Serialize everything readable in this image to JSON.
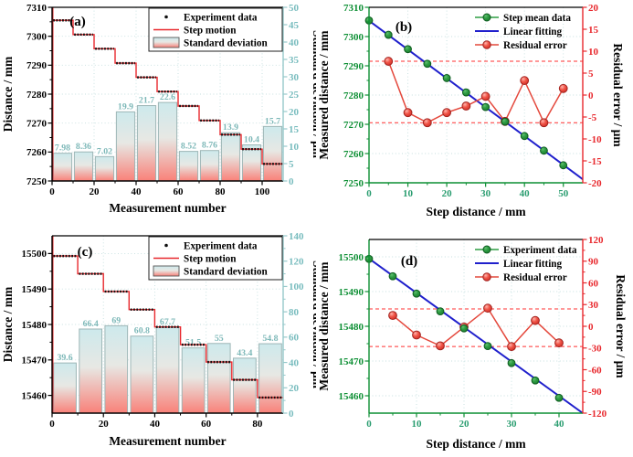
{
  "figure_title": "Step-motion distance measurement with standard deviation and linear-fit residuals",
  "colors": {
    "step_red": "#e8282d",
    "fit_blue": "#2020cc",
    "residual_red": "#e4483c",
    "bound_red": "#ff3030",
    "marker_green_dark": "#1a7a2c",
    "marker_green_mid": "#2f9e44",
    "axis_green": "#0d8f34",
    "xlabel_green": "#2a9d70",
    "axis_teal": "#96c9cb",
    "teal_label": "#78bcbe",
    "bar_label": "#7db8b8",
    "bar_top": "#cde9ec",
    "bar_mid": "#e7e8e4",
    "bar_bottom": "#f98179",
    "grid": "#c5dfdf",
    "black": "#111111"
  },
  "chart_data": [
    {
      "id": "a",
      "type": "line+bar",
      "panel_label": "(a)",
      "xlabel": "Measurement number",
      "ylabel_left": "Distance / mm",
      "ylabel_right": "Standard deviation / μm",
      "xlim": [
        0,
        110
      ],
      "xticks": [
        0,
        20,
        40,
        60,
        80,
        100
      ],
      "ylim_left": [
        7250,
        7310
      ],
      "yticks_left": [
        7250,
        7260,
        7270,
        7280,
        7290,
        7300,
        7310
      ],
      "ylim_right": [
        0,
        50
      ],
      "yticks_right": [
        0,
        5,
        10,
        15,
        20,
        25,
        30,
        35,
        40,
        45,
        50
      ],
      "legend": [
        {
          "label": "Experiment data",
          "symbol": "dot"
        },
        {
          "label": "Step motion",
          "symbol": "red-line"
        },
        {
          "label": "Standard deviation",
          "symbol": "gradient-bar"
        }
      ],
      "step_width": 10,
      "steps_mm": [
        7305.5,
        7300.6,
        7295.7,
        7290.7,
        7285.8,
        7280.9,
        7275.9,
        7270.9,
        7266.0,
        7261.0,
        7255.9
      ],
      "std_dev_um": [
        7.98,
        8.36,
        7.02,
        19.9,
        21.7,
        22.6,
        8.52,
        8.76,
        13.9,
        10.4,
        15.7
      ],
      "bar_labels": [
        "7.98",
        "8.36",
        "7.02",
        "19.9",
        "21.7",
        "22.6",
        "8.52",
        "8.76",
        "13.9",
        "10.4",
        "15.7"
      ]
    },
    {
      "id": "b",
      "type": "scatter+fit+residual",
      "panel_label": "(b)",
      "xlabel": "Step distance / mm",
      "ylabel_left": "Measured distance / mm",
      "ylabel_right": "Residual error / μm",
      "xlim": [
        0,
        55
      ],
      "xticks": [
        0,
        10,
        20,
        30,
        40,
        50
      ],
      "ylim_left": [
        7250,
        7310
      ],
      "yticks_left": [
        7250,
        7260,
        7270,
        7280,
        7290,
        7300,
        7310
      ],
      "ylim_right": [
        -20,
        20
      ],
      "yticks_right": [
        -20,
        -15,
        -10,
        -5,
        0,
        5,
        10,
        15,
        20
      ],
      "legend": [
        {
          "label": "Step mean data",
          "symbol": "green-line-dot"
        },
        {
          "label": "Linear fitting",
          "symbol": "blue-line"
        },
        {
          "label": "Residual error",
          "symbol": "red-line-dot"
        }
      ],
      "mean": {
        "x": [
          0,
          5,
          10,
          15,
          20,
          25,
          30,
          35,
          40,
          45,
          50
        ],
        "y": [
          7305.5,
          7300.6,
          7295.7,
          7290.7,
          7285.8,
          7280.9,
          7275.9,
          7270.9,
          7266.0,
          7261.0,
          7256.0
        ]
      },
      "fit_line": {
        "x": [
          0,
          55
        ],
        "y": [
          7305.4,
          7251.2
        ]
      },
      "residual": {
        "x": [
          5,
          10,
          15,
          20,
          25,
          30,
          35,
          40,
          45,
          50
        ],
        "y": [
          7.7,
          -4.0,
          -6.3,
          -4.0,
          -2.5,
          -0.3,
          -6.0,
          3.3,
          -6.3,
          1.5
        ]
      },
      "bound_lines": [
        7.7,
        -6.3
      ]
    },
    {
      "id": "c",
      "type": "line+bar",
      "panel_label": "(c)",
      "xlabel": "Measurement number",
      "ylabel_left": "Distance / mm",
      "ylabel_right": "Standard deviation / μm",
      "xlim": [
        0,
        90
      ],
      "xticks": [
        0,
        20,
        40,
        60,
        80
      ],
      "ylim_left": [
        15455,
        15505
      ],
      "yticks_left": [
        15460,
        15470,
        15480,
        15490,
        15500
      ],
      "ylim_right": [
        0,
        140
      ],
      "yticks_right": [
        0,
        20,
        40,
        60,
        80,
        100,
        120,
        140
      ],
      "legend": [
        {
          "label": "Experiment data",
          "symbol": "dot"
        },
        {
          "label": "Step motion",
          "symbol": "red-line"
        },
        {
          "label": "Standard deviation",
          "symbol": "gradient-bar"
        }
      ],
      "step_width": 10,
      "steps_mm": [
        15499.3,
        15494.3,
        15489.3,
        15484.2,
        15479.3,
        15474.3,
        15469.4,
        15464.4,
        15459.4
      ],
      "std_dev_um": [
        39.6,
        66.4,
        69,
        60.8,
        67.7,
        51.5,
        55,
        43.4,
        54.8
      ],
      "bar_labels": [
        "39.6",
        "66.4",
        "69",
        "60.8",
        "67.7",
        "51.5",
        "55",
        "43.4",
        "54.8"
      ]
    },
    {
      "id": "d",
      "type": "scatter+fit+residual",
      "panel_label": "(d)",
      "xlabel": "Step distance / mm",
      "ylabel_left": "Measured distance / mm",
      "ylabel_right": "Residual error / μm",
      "xlim": [
        0,
        45
      ],
      "xticks": [
        0,
        10,
        20,
        30,
        40
      ],
      "ylim_left": [
        15455,
        15505
      ],
      "yticks_left": [
        15460,
        15470,
        15480,
        15490,
        15500
      ],
      "ylim_right": [
        -120,
        120
      ],
      "yticks_right": [
        -120,
        -90,
        -60,
        -30,
        0,
        30,
        60,
        90,
        120
      ],
      "legend": [
        {
          "label": "Experiment data",
          "symbol": "green-line-dot"
        },
        {
          "label": "Linear fitting",
          "symbol": "blue-line"
        },
        {
          "label": "Residual error",
          "symbol": "red-line-dot"
        }
      ],
      "mean": {
        "x": [
          0,
          5,
          10,
          15,
          20,
          25,
          30,
          35,
          40
        ],
        "y": [
          15499.4,
          15494.4,
          15489.4,
          15484.3,
          15479.4,
          15474.3,
          15469.4,
          15464.4,
          15459.4
        ]
      },
      "fit_line": {
        "x": [
          0,
          45
        ],
        "y": [
          15499.5,
          15455.0
        ]
      },
      "residual": {
        "x": [
          5,
          10,
          15,
          20,
          25,
          30,
          35,
          40
        ],
        "y": [
          15,
          -12,
          -27,
          -1,
          25,
          -28,
          8,
          -23
        ]
      },
      "bound_lines": [
        24,
        -28
      ]
    }
  ]
}
